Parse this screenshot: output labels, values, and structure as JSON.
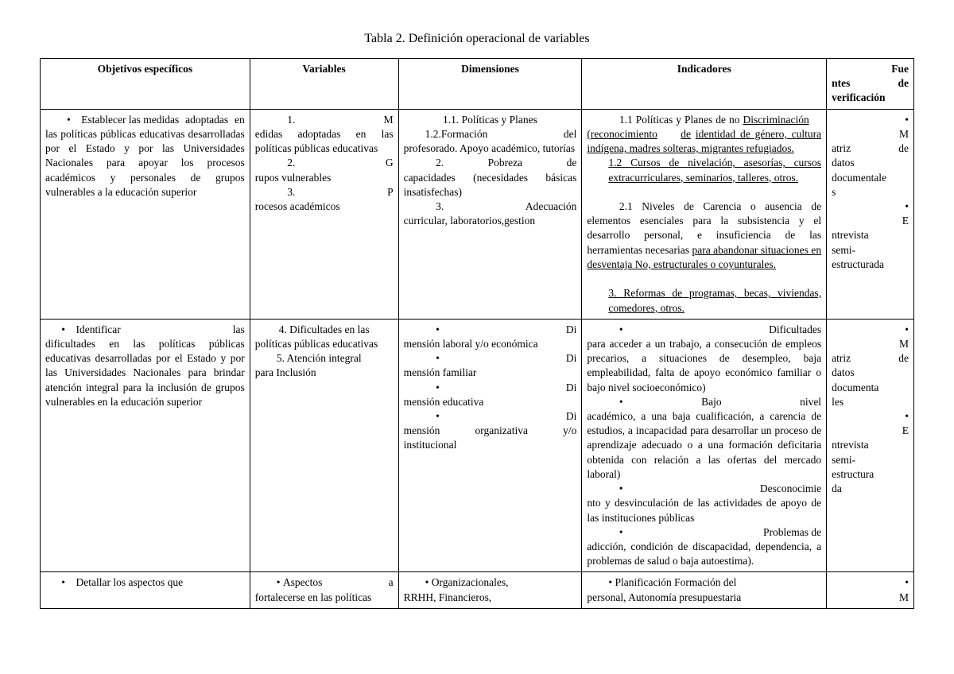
{
  "title": "Tabla 2. Definición operacional de variables",
  "headers": {
    "c1": "Objetivos específicos",
    "c2": "Variables",
    "c3": "Dimensiones",
    "c4": "Indicadores",
    "c5_line1": "Fue",
    "c5_line2": "ntes de",
    "c5_line3": "verificación"
  },
  "row1": {
    "obj_lead": "Establecer las medidas",
    "obj_body": "adoptadas en las políticas públicas educativas desarrolladas por el Estado y por las Universidades Nacionales para apoyar los procesos académicos y personales de grupos vulnerables a la educación superior",
    "var_1_num": "1.",
    "var_1_lead": "M",
    "var_1_body": "edidas adoptadas en las políticas públicas educativas",
    "var_2_num": "2.",
    "var_2_lead": "G",
    "var_2_body": "rupos vulnerables",
    "var_3_num": "3.",
    "var_3_lead": "P",
    "var_3_body": "rocesos académicos",
    "dim_11": "1.1. Políticas y Planes",
    "dim_12a": "1.2.Formación",
    "dim_12b": "del",
    "dim_12body": "profesorado. Apoyo académico, tutorías",
    "dim_2a": "2.",
    "dim_2b": "Pobreza",
    "dim_2c": "de",
    "dim_2body": "capacidades (necesidades básicas insatisfechas)",
    "dim_3a": "3.",
    "dim_3b": "Adecuación",
    "dim_3body": "curricular, laboratorios,gestion",
    "ind_11_pre": "1.1 Políticas y Planes de no",
    "ind_11_u1": "Discriminación",
    "ind_11_u2": "(reconocimiento",
    "ind_11_u3": "de",
    "ind_11_u4": "identidad de género, cultura indígena, madres solteras, migrantes refugiados.",
    "ind_12_u1": "1.2 Cursos de nivelación, asesorías, cursos extracurriculares, seminarios, talleres, otros.",
    "ind_21_pre": "2.1 Niveles de Carencia o",
    "ind_21_body": "ausencia de elementos esenciales para la subsistencia y el desarrollo personal, e insuficiencia de las herramientas necesarias ",
    "ind_21_u1": "para abandonar situaciones en desventaja No, estructurales o coyunturales.",
    "ind_3_u": "3. Reformas de programas, becas, viviendas, comedores, otros.",
    "fv_b1": "•",
    "fv_M": "M",
    "fv_l1": "atriz de",
    "fv_l2": "datos",
    "fv_l3": "documentale",
    "fv_l4": "s",
    "fv_b2": "•",
    "fv_E": "E",
    "fv_l5": "ntrevista",
    "fv_l6": "semi-",
    "fv_l7": "estructurada"
  },
  "row2": {
    "obj_lead": "Identificar",
    "obj_lead2": "las",
    "obj_body": "dificultades en las políticas públicas educativas desarrolladas por el Estado y por las Universidades Nacionales para brindar atención integral para la inclusión de grupos vulnerables en la educación superior",
    "var_4": "4. Dificultades en las",
    "var_4b": "políticas públicas educativas",
    "var_5": "5. Atención integral",
    "var_5b": "para Inclusión",
    "dim_b": "•",
    "dim_di": "Di",
    "dim_1": "mensión laboral y/o económica",
    "dim_2": "mensión familiar",
    "dim_3": "mensión educativa",
    "dim_4a": "mensión",
    "dim_4b": "organizativa",
    "dim_4c": "y/o",
    "dim_4d": "institucional",
    "ind_b": "•",
    "ind_1lead": "Dificultades",
    "ind_1body": "para acceder a un trabajo, a consecución de empleos precarios, a situaciones de desempleo, baja empleabilidad, falta de apoyo económico familiar o bajo nivel socioeconómico)",
    "ind_2leada": "Bajo",
    "ind_2leadb": "nivel",
    "ind_2body": "académico, a una baja cualificación, a carencia de estudios, a incapacidad para desarrollar un proceso de aprendizaje adecuado o a una formación deficitaria obtenida con relación a las ofertas del mercado laboral)",
    "ind_3lead": "Desconocimie",
    "ind_3body": "nto y desvinculación de las actividades de apoyo de las instituciones públicas",
    "ind_4lead": "Problemas de",
    "ind_4body": "adicción, condición de discapacidad, dependencia, a problemas de salud o baja autoestima).",
    "fv_b1": "•",
    "fv_M": "M",
    "fv_l1": "atriz de",
    "fv_l2": "datos",
    "fv_l3": "documenta",
    "fv_l4": "les",
    "fv_b2": "•",
    "fv_E": "E",
    "fv_l5": "ntrevista",
    "fv_l6": "semi-",
    "fv_l7": "estructura",
    "fv_l8": "da"
  },
  "row3": {
    "obj_lead": "Detallar los aspectos que",
    "var_b": "•",
    "var_1a": "Aspectos",
    "var_1b": "a",
    "var_2": "fortalecerse en las políticas",
    "dim_b": "•",
    "dim_1": "Organizacionales,",
    "dim_2": "RRHH, Financieros,",
    "ind_b": "•",
    "ind_1": "Planificación Formación del",
    "ind_2": "personal, Autonomía presupuestaria",
    "fv_b": "•",
    "fv_M": "M"
  }
}
